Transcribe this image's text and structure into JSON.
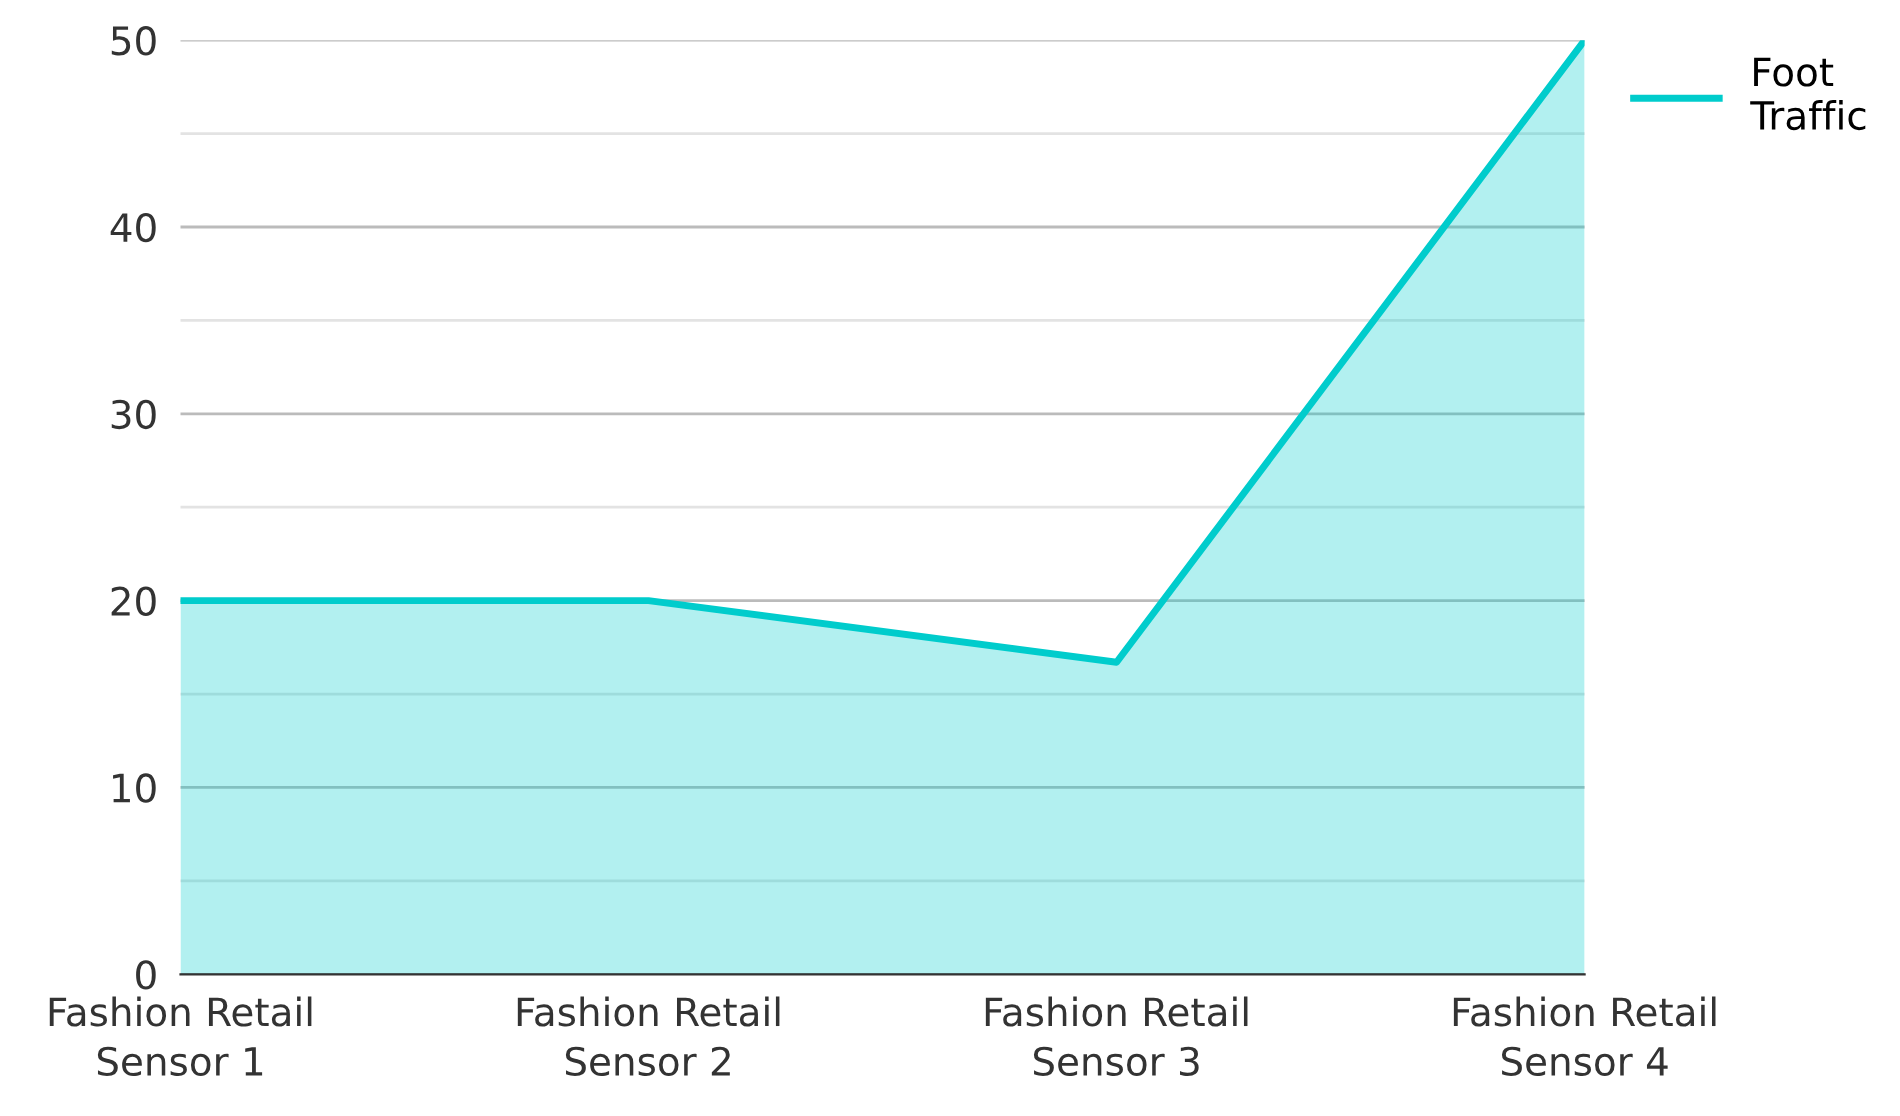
{
  "chart_data": {
    "type": "area",
    "categories": [
      "Fashion Retail\nSensor 1",
      "Fashion Retail\nSensor 2",
      "Fashion Retail\nSensor 3",
      "Fashion Retail\nSensor 4"
    ],
    "series": [
      {
        "name": "Foot\nTraffic",
        "color": "#00cccc",
        "values": [
          20,
          20,
          16.7,
          50
        ]
      }
    ],
    "ylim": [
      0,
      50
    ],
    "yticks": [
      0,
      {
        "value": 5,
        "label": null
      },
      10,
      {
        "value": 15,
        "label": null
      },
      20,
      {
        "value": 25,
        "label": null
      },
      30,
      {
        "value": 35,
        "label": null
      },
      40,
      {
        "value": 45,
        "label": null
      },
      50
    ],
    "grid": "y",
    "legend": "top right"
  }
}
